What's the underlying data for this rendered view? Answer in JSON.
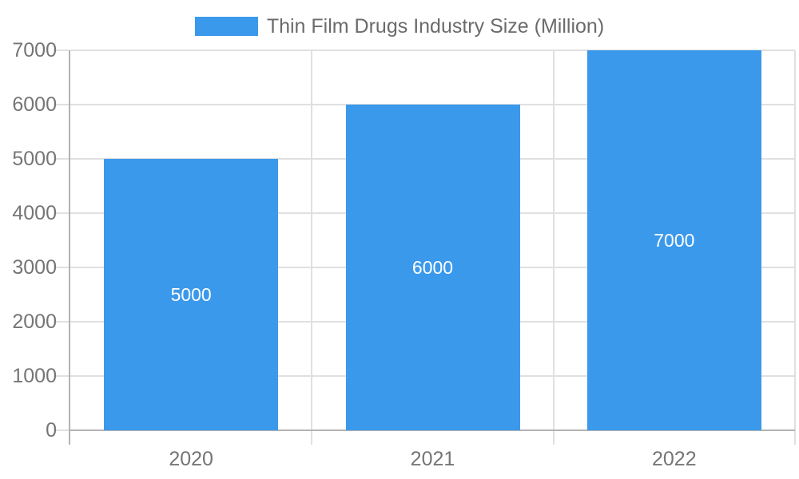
{
  "chart_data": {
    "type": "bar",
    "title": "Thin Film Drugs Industry Size (Million)",
    "categories": [
      "2020",
      "2021",
      "2022"
    ],
    "values": [
      5000,
      6000,
      7000
    ],
    "bar_labels": [
      "5000",
      "6000",
      "7000"
    ],
    "xlabel": "",
    "ylabel": "",
    "ylim": [
      0,
      7000
    ],
    "yticks": [
      0,
      1000,
      2000,
      3000,
      4000,
      5000,
      6000,
      7000
    ],
    "grid": true,
    "legend_position": "top"
  },
  "legend": {
    "label": "Thin Film Drugs Industry Size (Million)"
  },
  "colors": {
    "bar": "#3B99EC",
    "axis": "#B3B3B3",
    "grid": "#E0E0E0",
    "tick_text": "#757575",
    "legend_text": "#6B6B6B",
    "value_text": "#FFFFFF",
    "background": "#FFFFFF"
  }
}
